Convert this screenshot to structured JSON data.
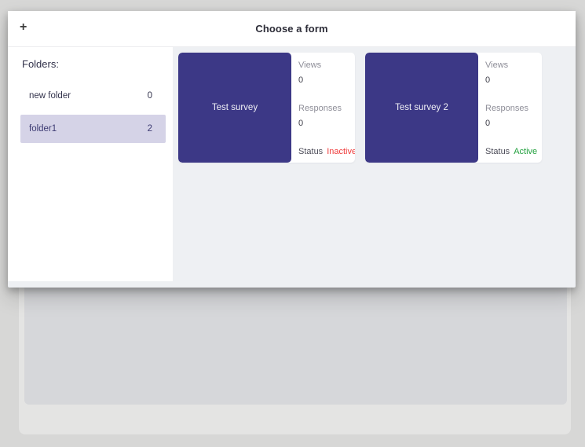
{
  "dialog": {
    "title": "Choose a form",
    "plus_icon": "+"
  },
  "sidebar": {
    "heading": "Folders:",
    "folders": [
      {
        "name": "new folder",
        "count": "0",
        "selected": false
      },
      {
        "name": "folder1",
        "count": "2",
        "selected": true
      }
    ]
  },
  "card_labels": {
    "views": "Views",
    "responses": "Responses",
    "status": "Status"
  },
  "cards": [
    {
      "title": "Test survey",
      "views": "0",
      "responses": "0",
      "status": "Inactive",
      "status_color": "#ef3b3b"
    },
    {
      "title": "Test survey 2",
      "views": "0",
      "responses": "0",
      "status": "Active",
      "status_color": "#23a13f"
    }
  ],
  "colors": {
    "accent_purple": "#3c3886",
    "selected_folder_bg": "#d5d3e7",
    "modal_body_bg": "#eef0f3",
    "page_bg": "#d7d7d6",
    "status_inactive": "#ef3b3b",
    "status_active": "#23a13f"
  }
}
